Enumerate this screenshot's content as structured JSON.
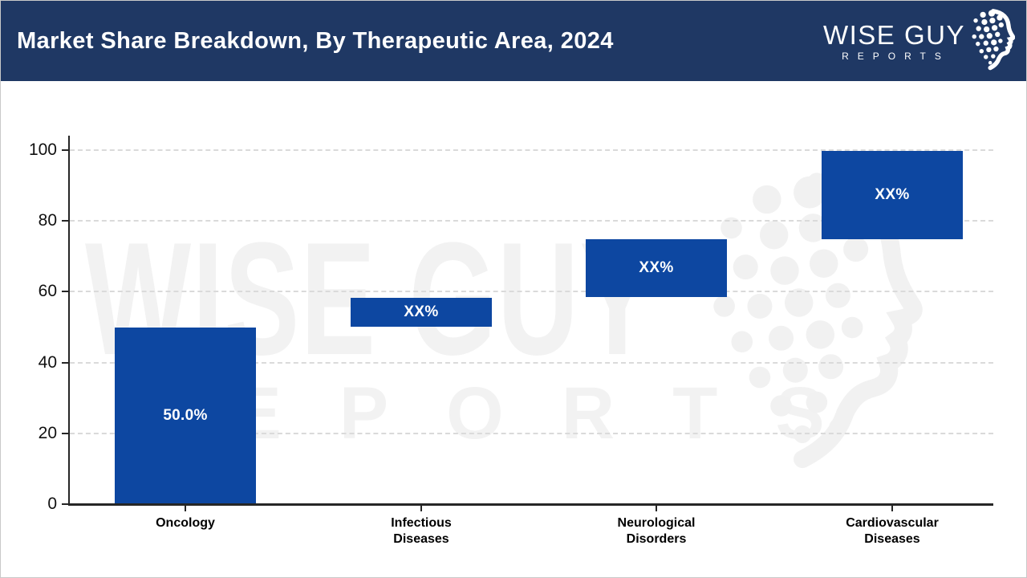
{
  "header": {
    "title": "Market Share Breakdown, By Therapeutic Area, 2024",
    "logo": {
      "line1": "WISE GUY",
      "line2": "REPORTS"
    }
  },
  "watermark": {
    "line1": "WISE GUY",
    "line2": "REPORTS"
  },
  "colors": {
    "header_bg": "#1f3864",
    "bar": "#0d47a1",
    "bar_label": "#ffffff",
    "axis": "#262626",
    "grid": "#dadada",
    "tick_text": "#111111",
    "watermark": "#f2f2f2",
    "frame_border": "#c9c9c9"
  },
  "chart_data": {
    "type": "bar",
    "subtype": "waterfall",
    "title": "Market Share Breakdown, By Therapeutic Area, 2024",
    "categories": [
      [
        "Oncology"
      ],
      [
        "Infectious",
        "Diseases"
      ],
      [
        "Neurological",
        "Disorders"
      ],
      [
        "Cardiovascular",
        "Diseases"
      ]
    ],
    "segments": [
      {
        "category": "Oncology",
        "start": 0,
        "end": 50,
        "label": "50.0%"
      },
      {
        "category": "Infectious Diseases",
        "start": 50,
        "end": 58.3,
        "label": "XX%"
      },
      {
        "category": "Neurological Disorders",
        "start": 58.6,
        "end": 74.8,
        "label": "XX%"
      },
      {
        "category": "Cardiovascular Diseases",
        "start": 74.8,
        "end": 99.8,
        "label": "XX%"
      }
    ],
    "yticks": [
      0,
      20,
      40,
      60,
      80,
      100
    ],
    "ylim": [
      0,
      103.5
    ],
    "xlabel": "",
    "ylabel": "",
    "grid": "horizontal-dashed",
    "legend": "none"
  }
}
